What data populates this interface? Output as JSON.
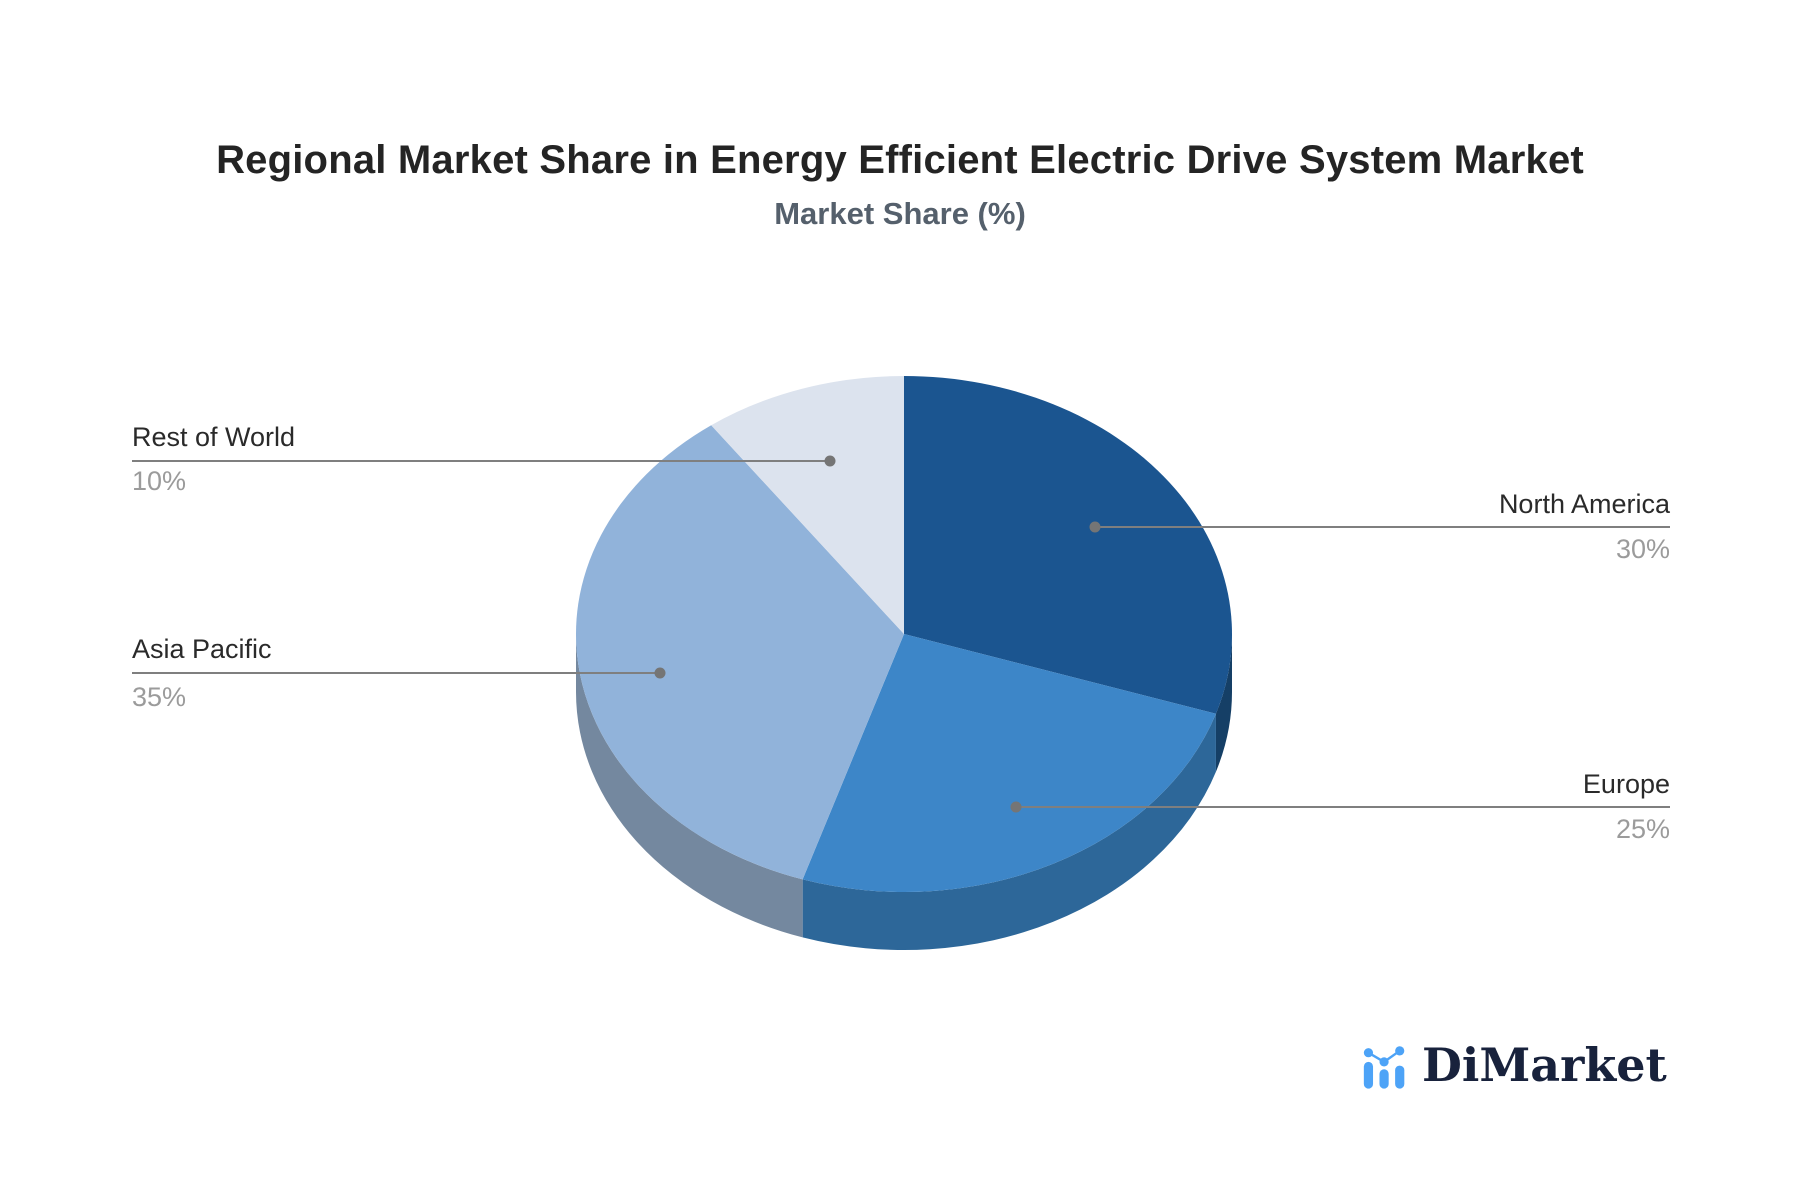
{
  "title": "Regional Market Share in Energy Efficient Electric Drive System Market",
  "subtitle": "Market Share (%)",
  "chart_data": {
    "type": "pie",
    "style": "3d-pie",
    "title": "Regional Market Share in Energy Efficient Electric Drive System Market",
    "subtitle": "Market Share (%)",
    "unit": "%",
    "rotation": "clockwise-from-12-oclock",
    "slices": [
      {
        "label": "North America",
        "value": 30,
        "display": "30%",
        "color": "#1b5590",
        "side_color": "#153f66"
      },
      {
        "label": "Europe",
        "value": 25,
        "display": "25%",
        "color": "#3d86c8",
        "side_color": "#2d6799"
      },
      {
        "label": "Asia Pacific",
        "value": 35,
        "display": "35%",
        "color": "#91b3da",
        "side_color": "#74889f"
      },
      {
        "label": "Rest of World",
        "value": 10,
        "display": "10%",
        "color": "#dce3ee",
        "side_color": "#b8c3d1"
      }
    ],
    "legend_position": "callout-labels",
    "callout_line_color": "#7f7f7f",
    "label_color": "#2a2a2a",
    "value_color": "#9b9b9b"
  },
  "brand": {
    "name": "DiMarket",
    "icon": "bar-chart-logo-icon",
    "accent_color": "#4da3f7",
    "text_color": "#18223c"
  }
}
